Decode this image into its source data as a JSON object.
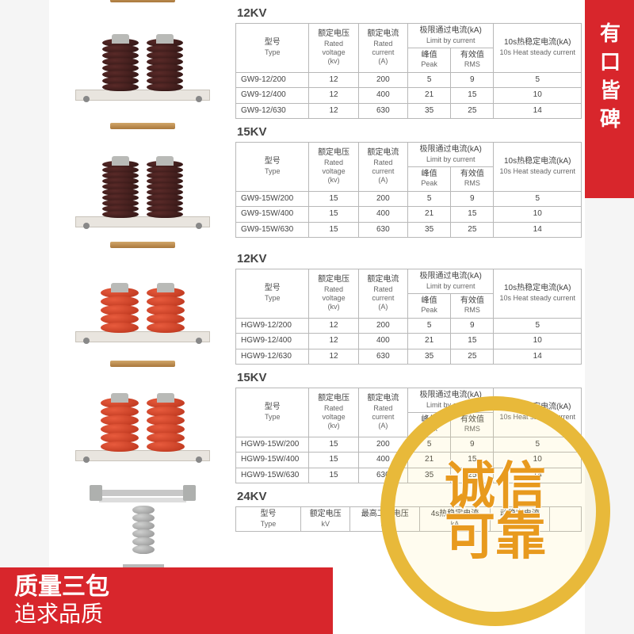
{
  "colors": {
    "accent_red": "#d8262c",
    "seal_gold": "#e8b93a",
    "seal_text": "#e89a1e",
    "table_border": "#b8b8b8",
    "text": "#444444",
    "insulator_brown": "#2b1312",
    "insulator_red": "#b63119",
    "insulator_grey": "#8f8f8f"
  },
  "ribbon_text": "有口皆碑",
  "banner_line1": "质量三包",
  "banner_line2": "追求品质",
  "seal_line1": "诚信",
  "seal_line2": "可靠",
  "header_labels": {
    "type": "型号",
    "type_en": "Type",
    "rated_voltage": "额定电压",
    "rated_voltage_en": "Rated voltage",
    "rated_voltage_unit": "(kv)",
    "rated_current": "额定电流",
    "rated_current_en": "Rated current",
    "rated_current_unit": "(A)",
    "limit_current": "极限通过电流(kA)",
    "limit_current_en": "Limit by current",
    "peak": "峰值",
    "peak_en": "Peak",
    "rms": "有效值",
    "rms_en": "RMS",
    "heat_steady": "10s热稳定电流(kA)",
    "heat_steady_en": "10s Heat steady current"
  },
  "header24": {
    "rated_voltage": "额定电压",
    "rated_voltage_unit": "kV",
    "max_voltage": "最高工作电压",
    "max_voltage_unit": "kV",
    "heat4s": "4s热稳定电流",
    "heat4s_unit": "kA",
    "dyn": "动稳定电流",
    "dyn_unit": "kA"
  },
  "sections": [
    {
      "kv_title": "12KV",
      "product_style": "brown",
      "rings": 8,
      "rows": [
        {
          "model": "GW9-12/200",
          "kv": "12",
          "a": "200",
          "peak": "5",
          "rms": "9",
          "hs": "5"
        },
        {
          "model": "GW9-12/400",
          "kv": "12",
          "a": "400",
          "peak": "21",
          "rms": "15",
          "hs": "10"
        },
        {
          "model": "GW9-12/630",
          "kv": "12",
          "a": "630",
          "peak": "35",
          "rms": "25",
          "hs": "14"
        }
      ]
    },
    {
      "kv_title": "15KV",
      "product_style": "brown tall",
      "rings": 10,
      "rows": [
        {
          "model": "GW9-15W/200",
          "kv": "15",
          "a": "200",
          "peak": "5",
          "rms": "9",
          "hs": "5"
        },
        {
          "model": "GW9-15W/400",
          "kv": "15",
          "a": "400",
          "peak": "21",
          "rms": "15",
          "hs": "10"
        },
        {
          "model": "GW9-15W/630",
          "kv": "15",
          "a": "630",
          "peak": "35",
          "rms": "25",
          "hs": "14"
        }
      ]
    },
    {
      "kv_title": "12KV",
      "product_style": "red",
      "rings": 5,
      "rows": [
        {
          "model": "HGW9-12/200",
          "kv": "12",
          "a": "200",
          "peak": "5",
          "rms": "9",
          "hs": "5"
        },
        {
          "model": "HGW9-12/400",
          "kv": "12",
          "a": "400",
          "peak": "21",
          "rms": "15",
          "hs": "10"
        },
        {
          "model": "HGW9-12/630",
          "kv": "12",
          "a": "630",
          "peak": "35",
          "rms": "25",
          "hs": "14"
        }
      ]
    },
    {
      "kv_title": "15KV",
      "product_style": "red",
      "rings": 6,
      "rows": [
        {
          "model": "HGW9-15W/200",
          "kv": "15",
          "a": "200",
          "peak": "5",
          "rms": "9",
          "hs": "5"
        },
        {
          "model": "HGW9-15W/400",
          "kv": "15",
          "a": "400",
          "peak": "21",
          "rms": "15",
          "hs": "10"
        },
        {
          "model": "HGW9-15W/630",
          "kv": "15",
          "a": "630",
          "peak": "35",
          "rms": "25",
          "hs": "14"
        }
      ]
    }
  ],
  "section24_title": "24KV"
}
